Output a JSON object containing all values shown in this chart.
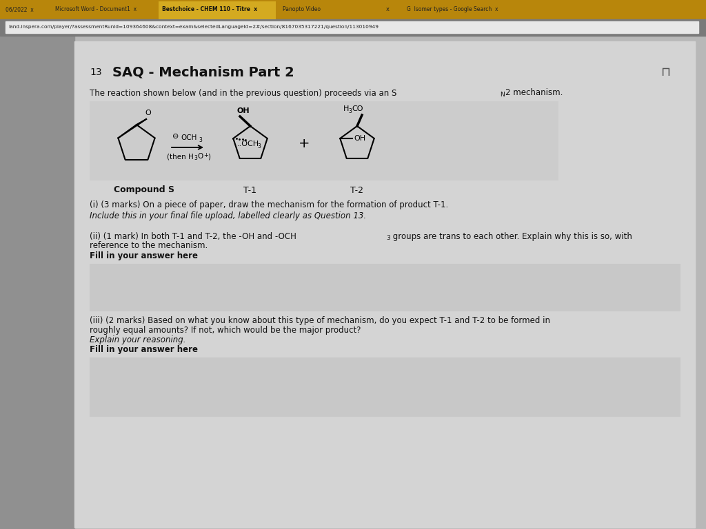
{
  "browser_tab_bg": "#C8A020",
  "browser_top_bg": "#8B6914",
  "url_bar_bg": "#6B6B6B",
  "url_bar_input_bg": "#E8E8E8",
  "page_bg": "#B8B8B8",
  "content_bg": "#D4D4D4",
  "left_sidebar_bg": "#A0A0A0",
  "answer_box_bg": "#C8C8C8",
  "answer_box_border": "#888888",
  "title_num": "13",
  "title_text": "SAQ - Mechanism Part 2",
  "url_text": "land.inspera.com/player/?assessmentRunId=109364608&context=exam&selectedLanguageId=2#/section/8167035317221/question/113010949",
  "tab1": "06/2022  x",
  "tab2": "Microsoft Word - Document1  x",
  "tab3": "Bestchoice - CHEM 110 - Titre  x",
  "tab4": "Panopto Video",
  "tab5": "x",
  "tab6": "G  Isomer types - Google Search  x",
  "intro_line": "The reaction shown below (and in the previous question) proceeds via an S",
  "intro_sub": "N",
  "intro_end": "2 mechanism.",
  "q1_line1": "(i) (3 marks) On a piece of paper, draw the mechanism for the formation of product T-1.",
  "q1_line2": "Include this in your final file upload, labelled clearly as Question 13.",
  "q2_line1a": "(ii) (1 mark) In both T-1 and T-2, the -OH and -OCH",
  "q2_line1b": "3",
  "q2_line1c": " groups are trans to each other. Explain why this is so, with",
  "q2_line2": "reference to the mechanism.",
  "q2_bold": "Fill in your answer here",
  "q3_line1": "(iii) (2 marks) Based on what you know about this type of mechanism, do you expect T-1 and T-2 to be formed in",
  "q3_line2": "roughly equal amounts? If not, which would be the major product?",
  "q3_italic": "Explain your reasoning.",
  "q3_bold": "Fill in your answer here"
}
